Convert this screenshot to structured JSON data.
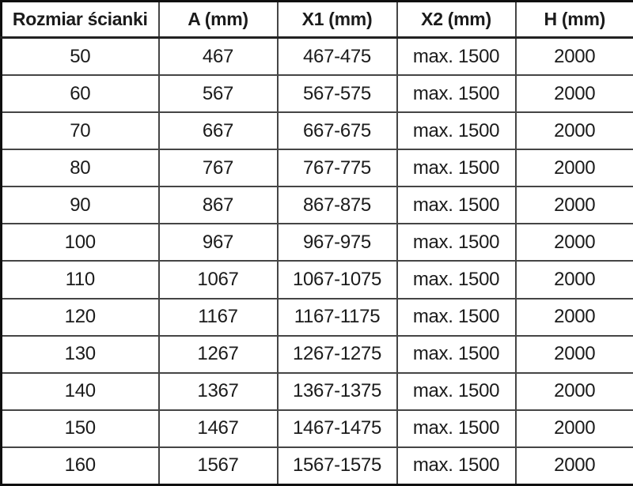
{
  "table": {
    "columns": [
      {
        "label": "Rozmiar ścianki"
      },
      {
        "label": "A (mm)"
      },
      {
        "label": "X1 (mm)"
      },
      {
        "label": "X2 (mm)"
      },
      {
        "label": "H (mm)"
      }
    ],
    "rows": [
      {
        "cells": [
          "50",
          "467",
          "467-475",
          "max. 1500",
          "2000"
        ]
      },
      {
        "cells": [
          "60",
          "567",
          "567-575",
          "max. 1500",
          "2000"
        ]
      },
      {
        "cells": [
          "70",
          "667",
          "667-675",
          "max. 1500",
          "2000"
        ]
      },
      {
        "cells": [
          "80",
          "767",
          "767-775",
          "max. 1500",
          "2000"
        ]
      },
      {
        "cells": [
          "90",
          "867",
          "867-875",
          "max. 1500",
          "2000"
        ]
      },
      {
        "cells": [
          "100",
          "967",
          "967-975",
          "max. 1500",
          "2000"
        ]
      },
      {
        "cells": [
          "110",
          "1067",
          "1067-1075",
          "max. 1500",
          "2000"
        ]
      },
      {
        "cells": [
          "120",
          "1167",
          "1167-1175",
          "max. 1500",
          "2000"
        ]
      },
      {
        "cells": [
          "130",
          "1267",
          "1267-1275",
          "max. 1500",
          "2000"
        ]
      },
      {
        "cells": [
          "140",
          "1367",
          "1367-1375",
          "max. 1500",
          "2000"
        ]
      },
      {
        "cells": [
          "150",
          "1467",
          "1467-1475",
          "max. 1500",
          "2000"
        ]
      },
      {
        "cells": [
          "160",
          "1567",
          "1567-1575",
          "max. 1500",
          "2000"
        ]
      }
    ]
  },
  "colors": {
    "background": "#ffffff",
    "text": "#1b1b1b",
    "border_outer": "#0f0f0f",
    "border_inner": "#454545"
  }
}
